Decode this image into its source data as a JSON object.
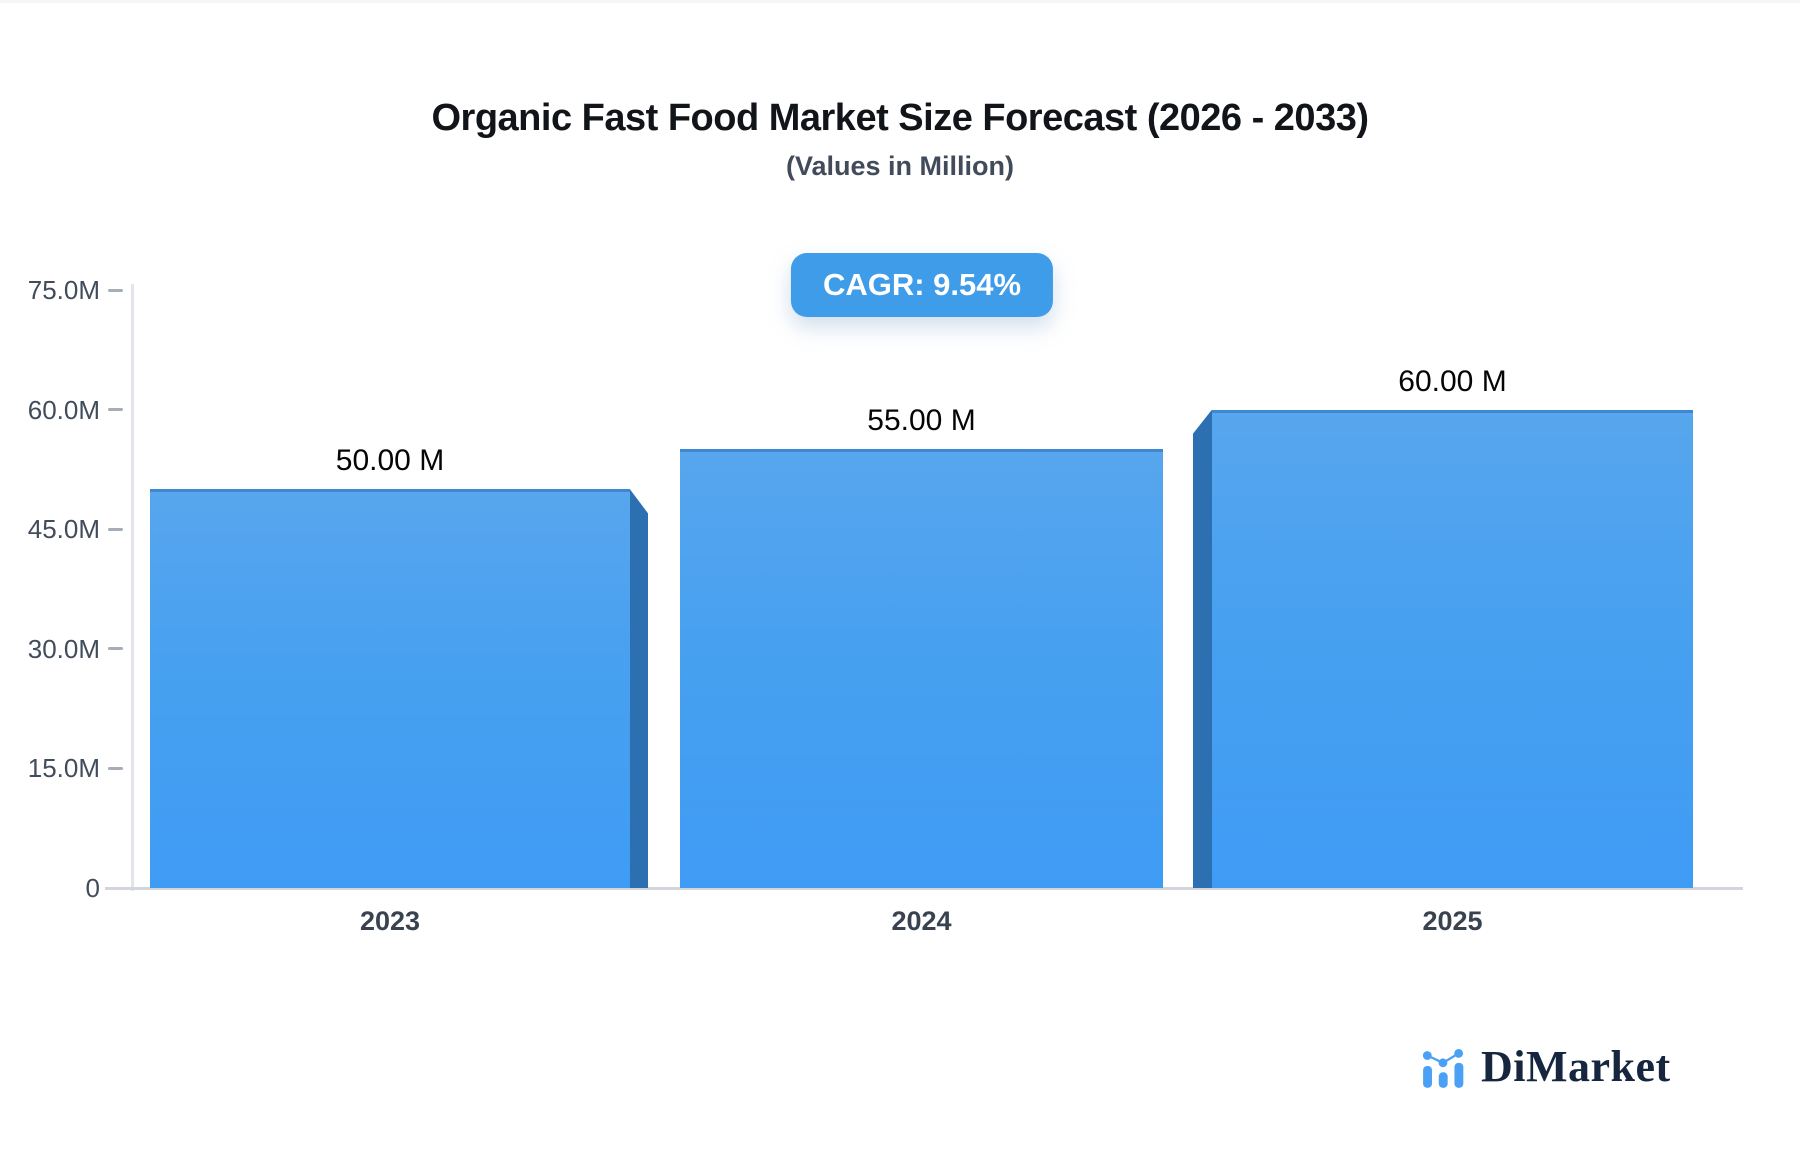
{
  "header": {
    "title": "Organic Fast Food Market Size Forecast (2026 - 2033)",
    "subtitle": "(Values in Million)",
    "cagr_badge": "CAGR: 9.54%"
  },
  "chart_data": {
    "type": "bar",
    "title": "Organic Fast Food Market Size Forecast (2026 - 2033)",
    "subtitle": "(Values in Million)",
    "annotation": "CAGR: 9.54%",
    "categories": [
      "2023",
      "2024",
      "2025"
    ],
    "values": [
      50,
      55,
      60
    ],
    "value_labels": [
      "50.00 M",
      "55.00 M",
      "60.00 M"
    ],
    "unit": "Million",
    "xlabel": "",
    "ylabel": "",
    "ylim": [
      0,
      75
    ],
    "yticks": [
      {
        "label": "75.0M",
        "value": 75
      },
      {
        "label": "60.0M",
        "value": 60
      },
      {
        "label": "45.0M",
        "value": 45
      },
      {
        "label": "30.0M",
        "value": 30
      },
      {
        "label": "15.0M",
        "value": 15
      },
      {
        "label": "0",
        "value": 0
      }
    ],
    "grid": false,
    "legend": false,
    "bar_style": "3d-extruded",
    "colors": {
      "bar_fill_top": "#57a6ee",
      "bar_fill_bottom": "#3f9cf4",
      "bar_top_edge": "#3e87d2",
      "bar_side": "#2d70b2",
      "badge_background": "#3e9ce9",
      "axis_line": "#e2e5e9",
      "baseline": "#d2d5d9",
      "tick_text": "#424c5b"
    }
  },
  "footer": {
    "brand": "DiMarket",
    "logo_color": "#4aa0f5",
    "brand_text_color": "#16263f"
  }
}
